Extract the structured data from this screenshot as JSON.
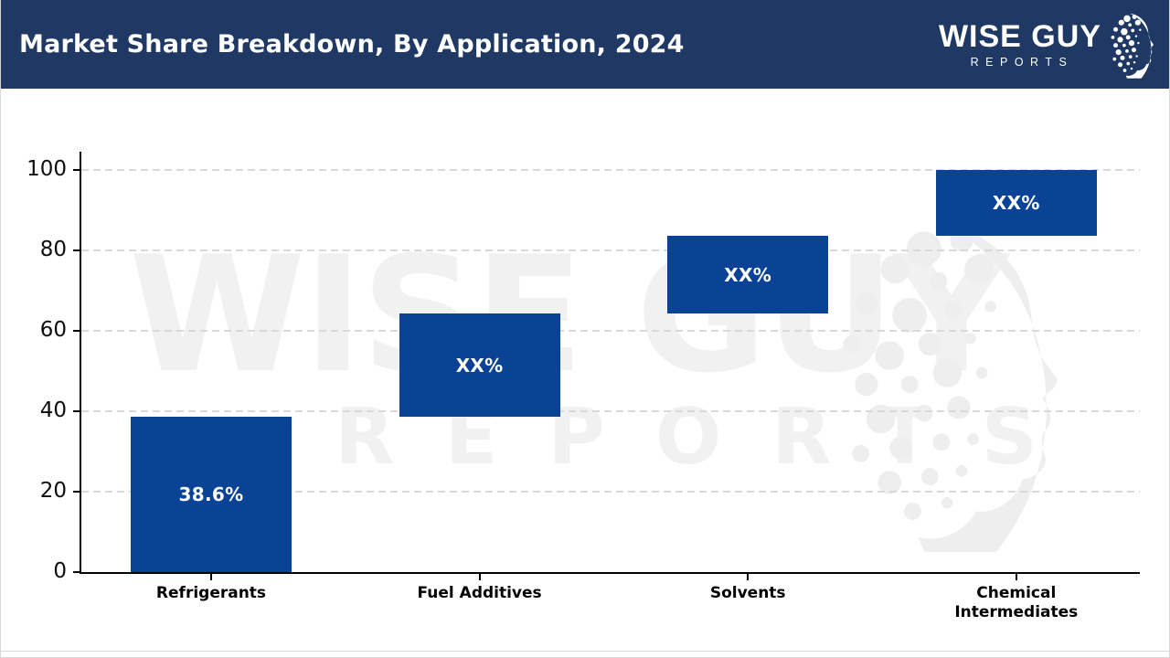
{
  "header": {
    "title": "Market Share Breakdown, By Application, 2024",
    "logo": {
      "wise_guy": "WISE GUY",
      "reports": "REPORTS"
    }
  },
  "watermark": {
    "wise_guy": "WISE GUY",
    "reports": "REPORTS"
  },
  "colors": {
    "header_bg": "#1f3864",
    "bar": "#0a4296",
    "grid": "#d9d9d9",
    "watermark": "#f1f1f1",
    "bar_label_text": "#ffffff",
    "axis_text": "#0d0d0d"
  },
  "chart_data": {
    "type": "bar",
    "variant": "floating-waterfall (segments stack to 100%)",
    "title": "Market Share Breakdown, By Application, 2024",
    "categories": [
      "Refrigerants",
      "Fuel Additives",
      "Solvents",
      "Chemical Intermediates"
    ],
    "bars": [
      {
        "category": "Refrigerants",
        "start": 0,
        "end": 38.6,
        "value_label": "38.6%",
        "value": 38.6
      },
      {
        "category": "Fuel Additives",
        "start": 38.6,
        "end": 64.3,
        "value_label": "XX%",
        "value_estimate": 25.7
      },
      {
        "category": "Solvents",
        "start": 64.3,
        "end": 83.6,
        "value_label": "XX%",
        "value_estimate": 19.3
      },
      {
        "category": "Chemical Intermediates",
        "start": 83.6,
        "end": 100,
        "value_label": "XX%",
        "value_estimate": 16.4
      }
    ],
    "yticks": [
      0,
      20,
      40,
      60,
      80,
      100
    ],
    "ylim": [
      0,
      104
    ],
    "xlabel": "",
    "ylabel": "",
    "grid": "horizontal-dashed",
    "legend": "none"
  }
}
